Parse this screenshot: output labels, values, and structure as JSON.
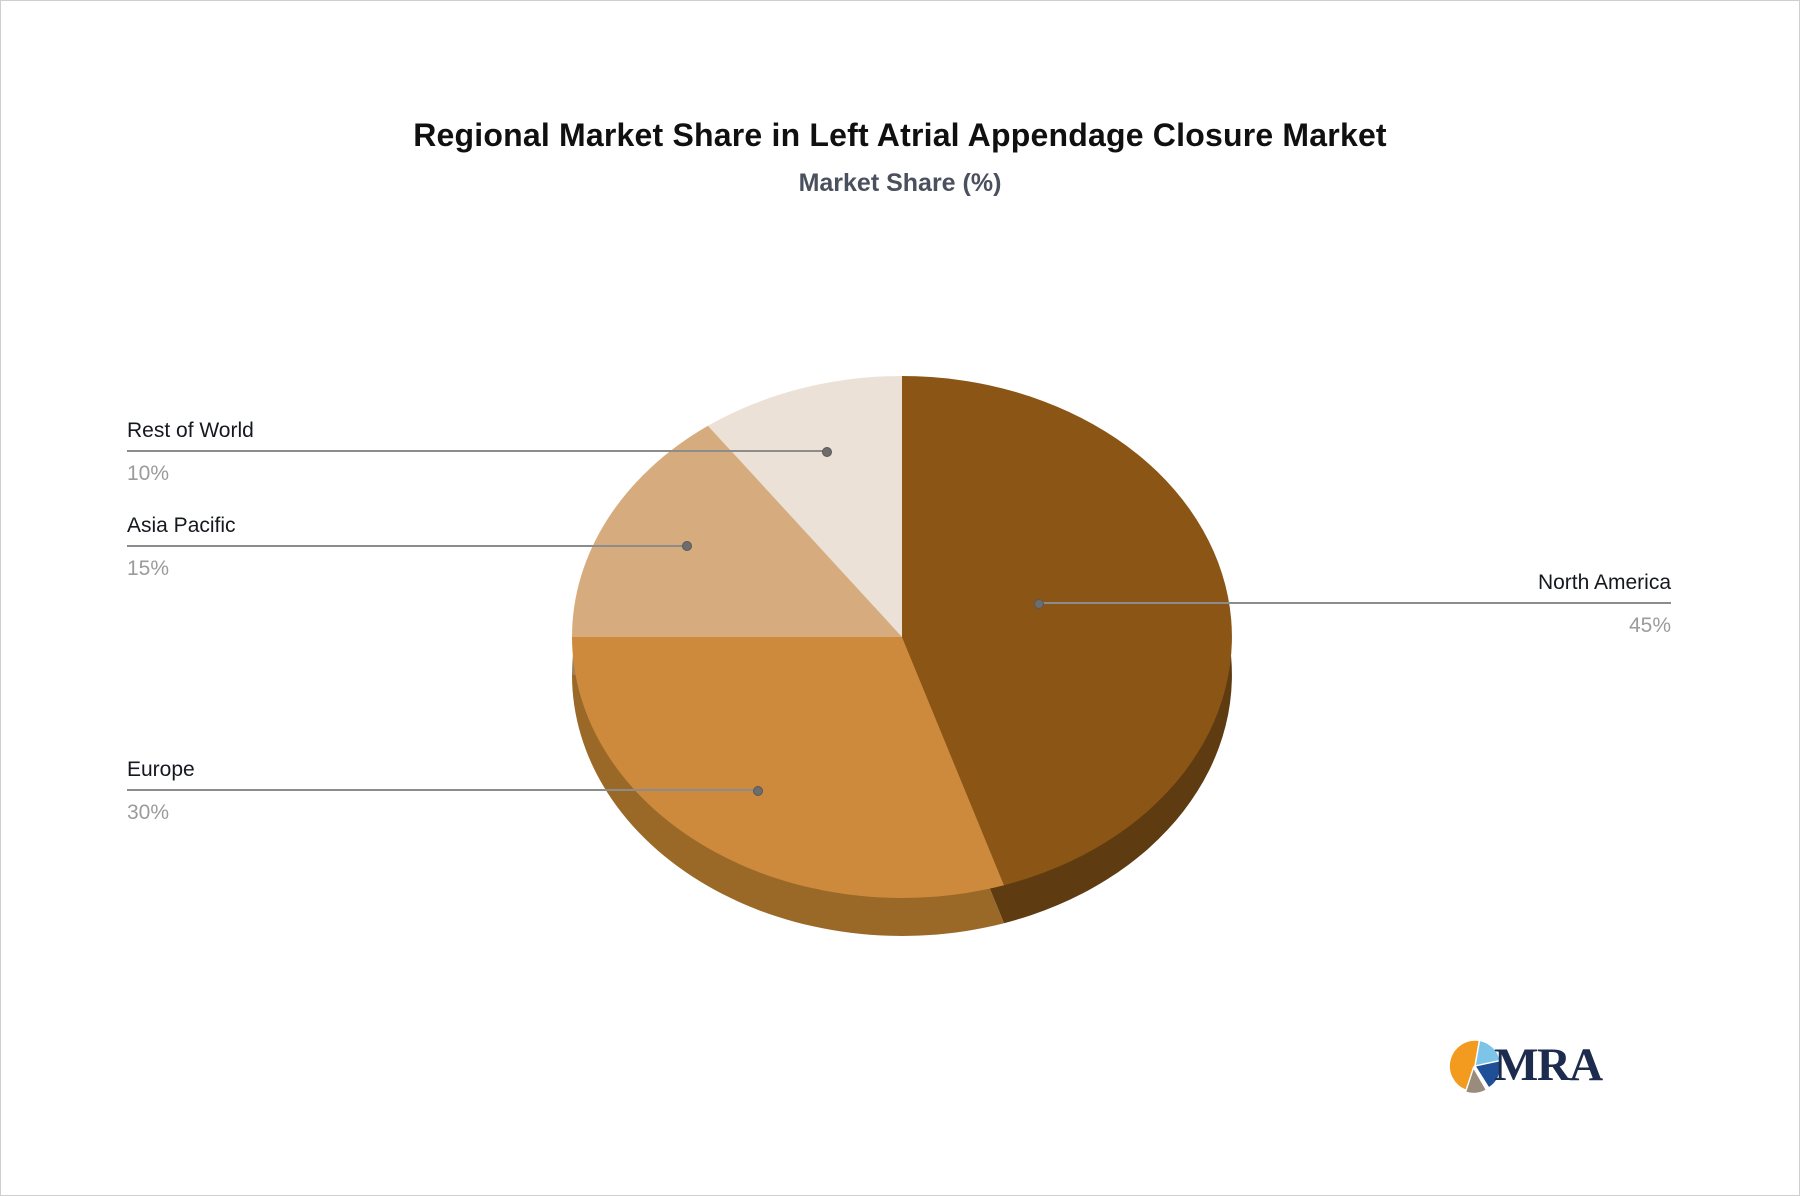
{
  "title": "Regional Market Share in Left Atrial Appendage Closure Market",
  "subtitle": "Market Share (%)",
  "chart_data": {
    "type": "pie",
    "style": "3d",
    "title": "Regional Market Share in Left Atrial Appendage Closure Market",
    "subtitle": "Market Share (%)",
    "unit": "%",
    "start_angle_deg": 0,
    "direction": "clockwise",
    "legend_position": "none",
    "label_style": "leader-line callouts, name above line and percent below",
    "slices": [
      {
        "label": "North America",
        "value": 45,
        "display": "45%",
        "color": "#8B5516",
        "side_color": "#5E3B10"
      },
      {
        "label": "Europe",
        "value": 30,
        "display": "30%",
        "color": "#CD8A3D",
        "side_color": "#9A6928"
      },
      {
        "label": "Asia Pacific",
        "value": 15,
        "display": "15%",
        "color": "#D6AC7F",
        "side_color": "#9F8059"
      },
      {
        "label": "Rest of World",
        "value": 10,
        "display": "10%",
        "color": "#ECE1D6",
        "side_color": "#B8ADA2"
      }
    ],
    "leader_line_color": "#8c8c8c",
    "dot_color": "#6d6d6d",
    "name_text_color": "#16181f",
    "percent_text_color": "#9b9b9b"
  },
  "logo": {
    "text": "MRA",
    "text_color": "#1D2B4E",
    "icon_colors": {
      "orange": "#F39B1E",
      "light_blue": "#7EC3E8",
      "dark_blue": "#1F4F97",
      "taupe": "#9A8C7C"
    }
  }
}
